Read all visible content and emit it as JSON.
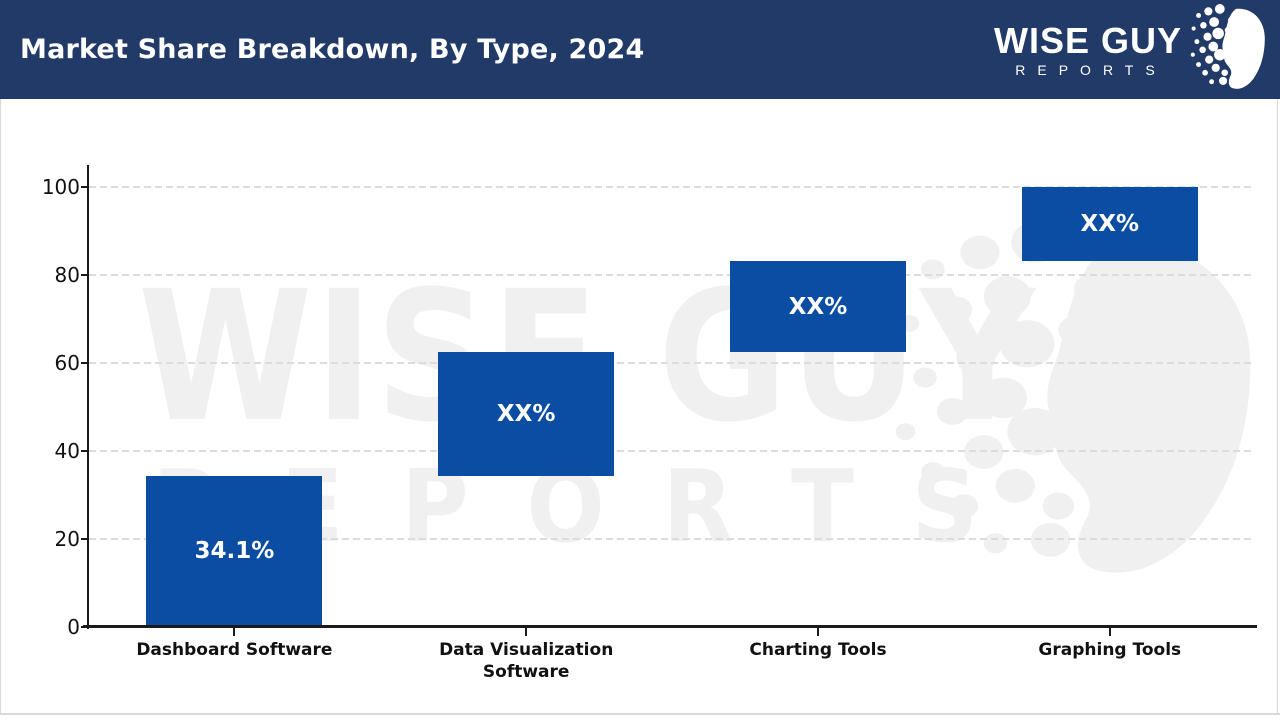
{
  "header": {
    "title": "Market Share Breakdown, By Type, 2024",
    "logo": {
      "name": "WISE GUY",
      "sub": "REPORTS"
    }
  },
  "watermark": {
    "name": "WISE GUY",
    "sub": "R E P O R T S"
  },
  "chart_data": {
    "type": "bar",
    "subtype": "waterfall",
    "title": "Market Share Breakdown, By Type, 2024",
    "categories": [
      "Dashboard Software",
      "Data Visualization Software",
      "Charting Tools",
      "Graphing Tools"
    ],
    "segments": [
      {
        "category": "Dashboard Software",
        "start": 0,
        "end": 34.1,
        "label": "34.1%"
      },
      {
        "category": "Data Visualization Software",
        "start": 34.1,
        "end": 62.4,
        "label": "XX%"
      },
      {
        "category": "Charting Tools",
        "start": 62.4,
        "end": 83.0,
        "label": "XX%"
      },
      {
        "category": "Graphing Tools",
        "start": 83.0,
        "end": 100.0,
        "label": "XX%"
      }
    ],
    "xlabel": "",
    "ylabel": "",
    "y_ticks": [
      0,
      20,
      40,
      60,
      80,
      100
    ],
    "ylim": [
      0,
      105
    ],
    "grid": "horizontal-dashed",
    "legend": "none",
    "bar_color": "#0b4da2",
    "bar_label_color": "#ffffff",
    "axis_color": "#1a1a1a",
    "grid_color": "#dcdcdc",
    "header_color": "#223a67",
    "watermark_color": "#f0f0f1"
  }
}
